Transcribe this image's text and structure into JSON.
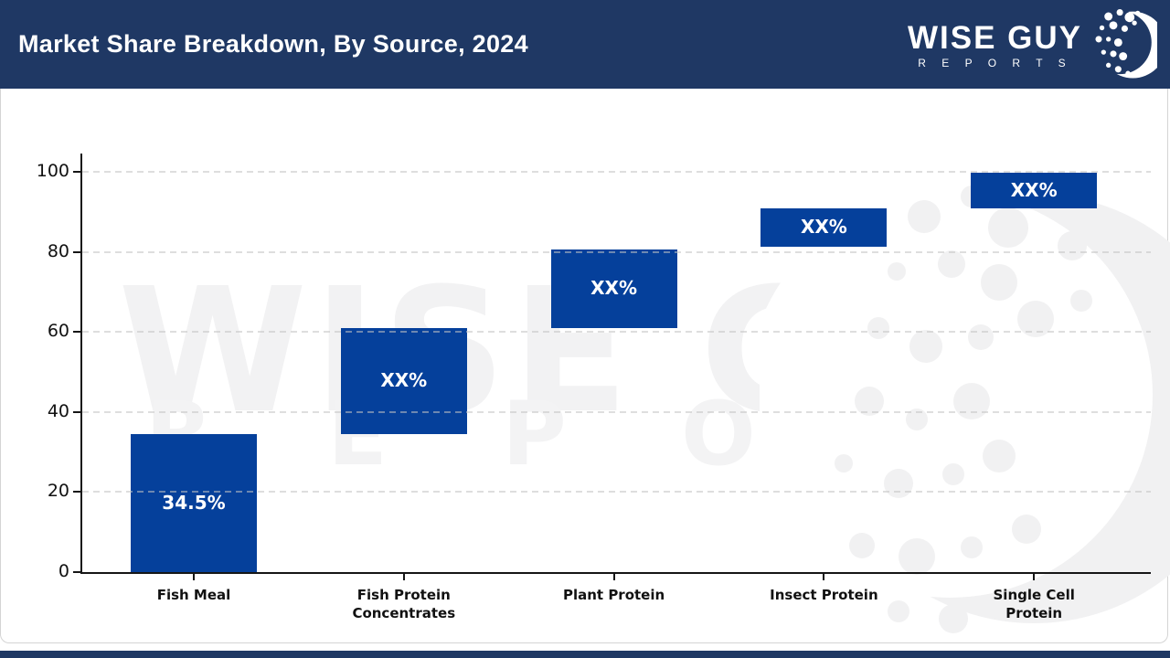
{
  "header": {
    "title": "Market Share Breakdown, By Source, 2024",
    "logo": {
      "name": "WISE GUY",
      "sub": "R E P O R T S",
      "face_icon": "dotted-head-profile"
    }
  },
  "watermark": {
    "line1": "WISE GUY",
    "line2": "R E P O R T S",
    "face_icon": "dotted-head-profile"
  },
  "colors": {
    "header_bg": "#1f3864",
    "bar": "#05409b",
    "axis": "#161616",
    "grid": "#d9d9d9",
    "value_label": "#ffffff",
    "watermark": "#f2f2f3"
  },
  "chart_data": {
    "type": "bar",
    "variant": "waterfall",
    "title": "Market Share Breakdown, By Source, 2024",
    "categories": [
      "Fish Meal",
      "Fish Protein Concentrates",
      "Plant Protein",
      "Insect Protein",
      "Single Cell Protein"
    ],
    "category_label_lines": [
      [
        "Fish Meal"
      ],
      [
        "Fish Protein",
        "Concentrates"
      ],
      [
        "Plant Protein"
      ],
      [
        "Insect Protein"
      ],
      [
        "Single Cell",
        "Protein"
      ]
    ],
    "series": [
      {
        "name": "Market Share (%)",
        "segments": [
          {
            "category": "Fish Meal",
            "start": 0,
            "end": 34.5,
            "label": "34.5%"
          },
          {
            "category": "Fish Protein Concentrates",
            "start": 34.5,
            "end": 61.0,
            "label": "XX%"
          },
          {
            "category": "Plant Protein",
            "start": 61.0,
            "end": 80.6,
            "label": "XX%"
          },
          {
            "category": "Insect Protein",
            "start": 81.3,
            "end": 90.8,
            "label": "XX%"
          },
          {
            "category": "Single Cell Protein",
            "start": 90.9,
            "end": 99.8,
            "label": "XX%"
          }
        ]
      }
    ],
    "ylim": [
      0,
      100
    ],
    "yticks": [
      0,
      20,
      40,
      60,
      80,
      100
    ],
    "grid": "horizontal-dashed",
    "legend": "none"
  }
}
